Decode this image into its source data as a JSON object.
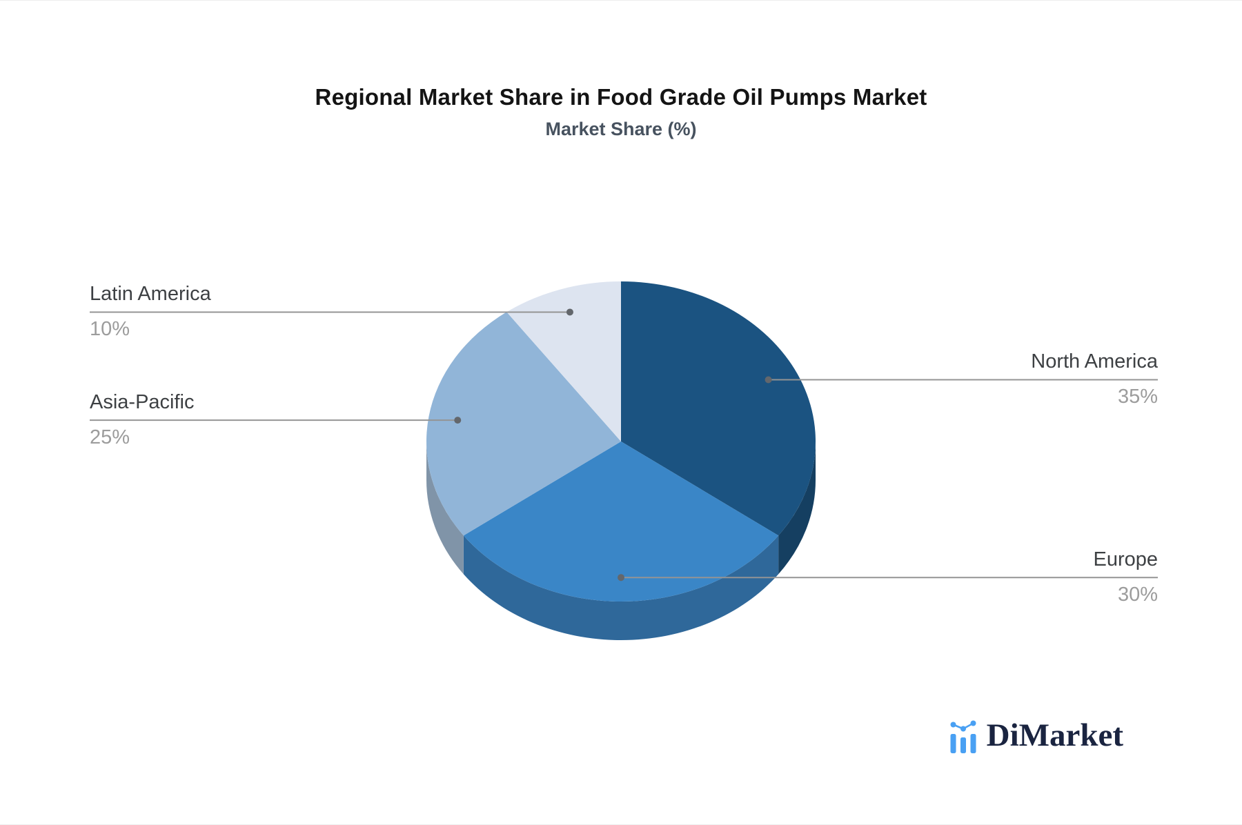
{
  "header": {
    "title": "Regional Market Share in Food Grade Oil Pumps Market",
    "subtitle": "Market Share (%)"
  },
  "branding": {
    "logo_text": "DiMarket",
    "logo_icon": "bar-chart-icon",
    "logo_text_color": "#1a2440",
    "logo_icon_color": "#49a0f3"
  },
  "chart_data": {
    "type": "pie",
    "style": "3d",
    "title": "Regional Market Share in Food Grade Oil Pumps Market",
    "subtitle": "Market Share (%)",
    "unit": "%",
    "start_angle_deg": 0,
    "direction": "clockwise",
    "legend": "none",
    "categories": [
      "North America",
      "Europe",
      "Asia-Pacific",
      "Latin America"
    ],
    "values": [
      35,
      30,
      25,
      10
    ],
    "slices": [
      {
        "label": "North America",
        "value": 35,
        "pct_label": "35%",
        "color": "#1b5381",
        "side_color": "#153f61",
        "label_side": "right"
      },
      {
        "label": "Europe",
        "value": 30,
        "pct_label": "30%",
        "color": "#3a86c7",
        "side_color": "#2f689a",
        "label_side": "right"
      },
      {
        "label": "Asia-Pacific",
        "value": 25,
        "pct_label": "25%",
        "color": "#91b5d8",
        "side_color": "#8094a8",
        "label_side": "left"
      },
      {
        "label": "Latin America",
        "value": 10,
        "pct_label": "10%",
        "color": "#dde4f0",
        "side_color": "#c9d2e2",
        "label_side": "left"
      }
    ],
    "leader_line_color": "#949494",
    "leader_dot_color": "#63676c",
    "label_color": "#3d4043",
    "pct_color": "#9c9c9c"
  }
}
